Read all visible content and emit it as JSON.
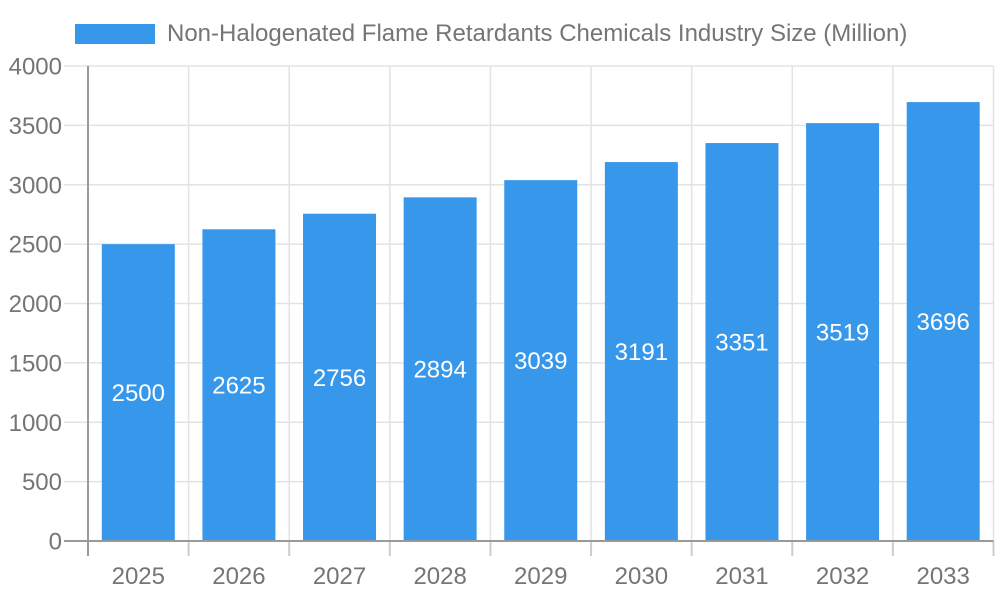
{
  "legend": {
    "label": "Non-Halogenated Flame Retardants Chemicals Industry Size (Million)"
  },
  "chart_data": {
    "type": "bar",
    "title": "Non-Halogenated Flame Retardants Chemicals Industry Size (Million)",
    "categories": [
      "2025",
      "2026",
      "2027",
      "2028",
      "2029",
      "2030",
      "2031",
      "2032",
      "2033"
    ],
    "series": [
      {
        "name": "Non-Halogenated Flame Retardants Chemicals Industry Size (Million)",
        "values": [
          2500,
          2625,
          2756,
          2894,
          3039,
          3191,
          3351,
          3519,
          3696
        ]
      }
    ],
    "xlabel": "",
    "ylabel": "",
    "ylim": [
      0,
      4000
    ],
    "yticks": [
      0,
      500,
      1000,
      1500,
      2000,
      2500,
      3000,
      3500,
      4000
    ],
    "grid": true,
    "legend_position": "top",
    "value_labels": "inside-center",
    "colors": {
      "bar": "#3798EB",
      "value_label": "#FFFFFF",
      "axis_label": "#757575",
      "legend_text": "#757575",
      "grid_line": "#E3E3E3",
      "tick_line": "#CCCCCC",
      "axis_line": "#999999",
      "background": "#FFFFFF"
    }
  }
}
